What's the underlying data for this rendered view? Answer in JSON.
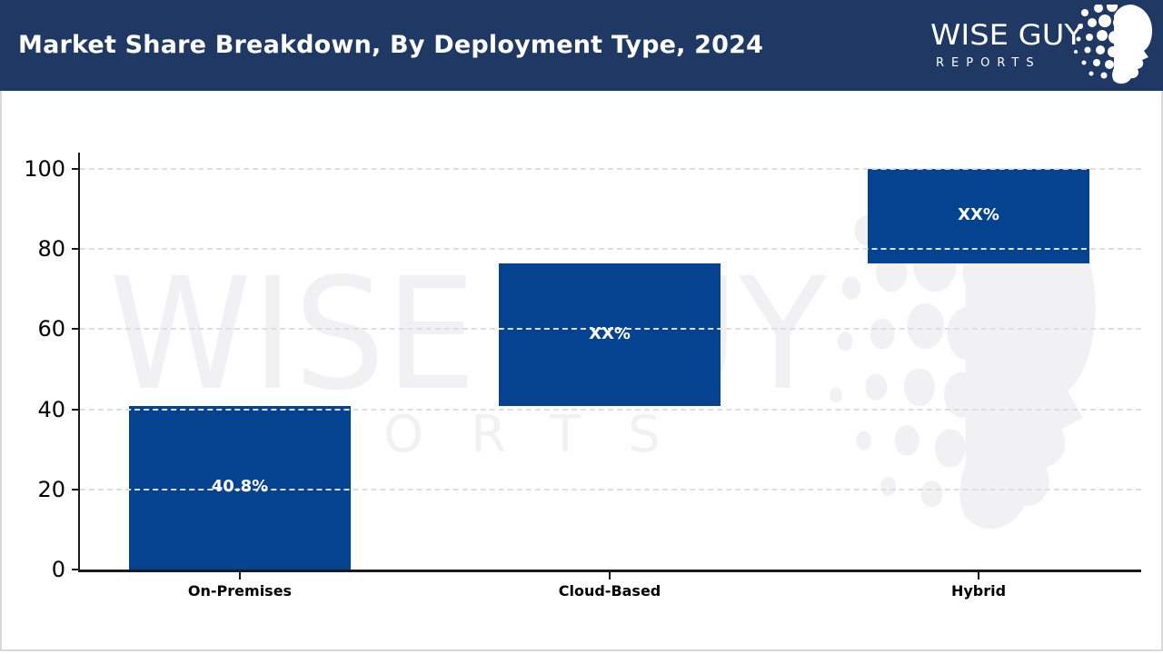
{
  "header": {
    "title": "Market Share Breakdown, By Deployment Type, 2024",
    "bg_color": "#203864",
    "logo": {
      "line1": "WISE GUY",
      "line2": "REPORTS"
    }
  },
  "watermark": {
    "line1": "WISE GUY",
    "line2": "REPORTS"
  },
  "chart_data": {
    "type": "bar",
    "subtype": "floating-segment market-share breakdown (segments stack 0-100%)",
    "title": "Market Share Breakdown, By Deployment Type, 2024",
    "categories": [
      "On-Premises",
      "Cloud-Based",
      "Hybrid"
    ],
    "segments": [
      {
        "category": "On-Premises",
        "start": 0,
        "end": 40.8,
        "label": "40.8%"
      },
      {
        "category": "Cloud-Based",
        "start": 40.8,
        "end": 76.4,
        "label": "XX%"
      },
      {
        "category": "Hybrid",
        "start": 76.4,
        "end": 100,
        "label": "XX%"
      }
    ],
    "values_pct": [
      40.8,
      35.6,
      23.6
    ],
    "xlabel": "",
    "ylabel": "",
    "ylim": [
      0,
      100
    ],
    "yticks": [
      0,
      20,
      40,
      60,
      80,
      100
    ],
    "grid": "horizontal dashed",
    "grid_color": "#dedede",
    "bar_color": "#05428f",
    "label_color": "#ffffff",
    "legend": "none"
  }
}
